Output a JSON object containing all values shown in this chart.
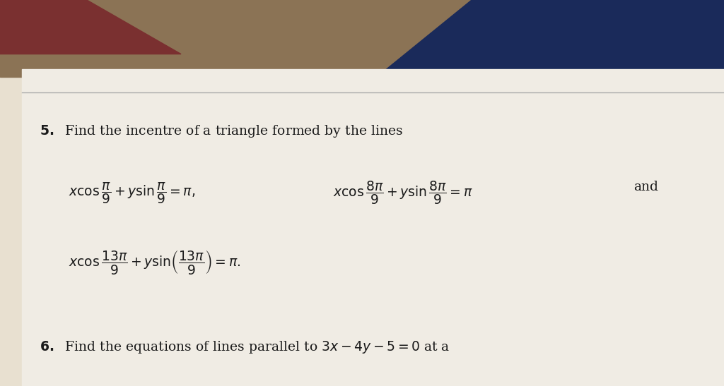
{
  "background_paper": "#e8e0d0",
  "text_color": "#1a1a1a",
  "figsize": [
    10.24,
    5.47
  ],
  "dpi": 100,
  "intro_text": "Find the incentre of a triangle formed by the lines",
  "word_and": "and",
  "footer_intro": "Find the equations of lines parallel to ",
  "banner_brown": "#8B7355",
  "banner_blue": "#1a2a5a",
  "banner_red": "#7a3030",
  "paper_color": "#f0ece4",
  "sep_line_color": "#aaaaaa",
  "math_color": "#1a1a1a"
}
